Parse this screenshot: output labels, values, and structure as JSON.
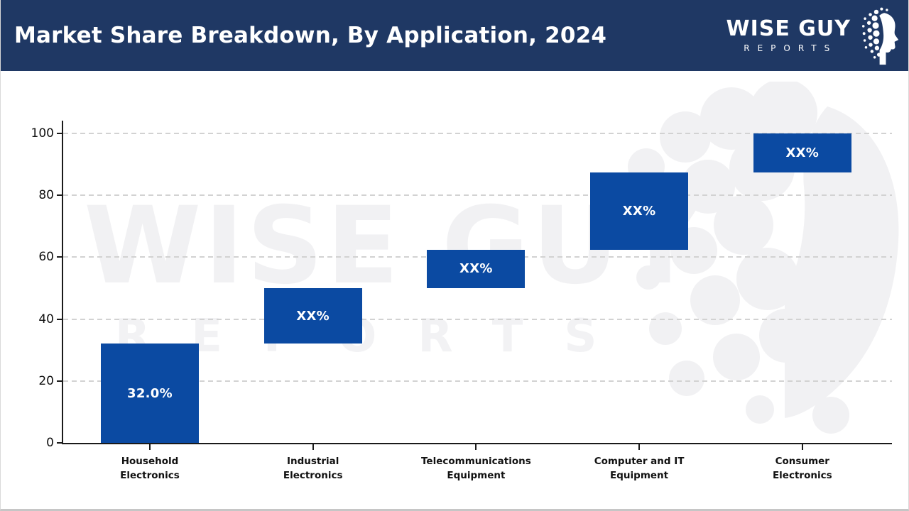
{
  "header": {
    "title": "Market Share Breakdown, By Application, 2024",
    "logo": {
      "name": "WISE GUY",
      "tagline": "REPORTS"
    }
  },
  "watermark": {
    "text_main": "WISE GUY",
    "text_sub": "REPORTS"
  },
  "colors": {
    "header_bg": "#1f3864",
    "bar_fill": "#0b4aa2",
    "bar_label_text": "#ffffff",
    "gridline": "#d2d2d2",
    "axis": "#1a1a1a",
    "tick_text": "#111111",
    "title_text": "#ffffff",
    "watermark": "#f1f1f3"
  },
  "chart_data": {
    "type": "bar",
    "variant": "waterfall",
    "title": "Market Share Breakdown, By Application, 2024",
    "unit": "%",
    "categories": [
      "Household Electronics",
      "Industrial Electronics",
      "Telecommunications Equipment",
      "Computer and IT Equipment",
      "Consumer Electronics"
    ],
    "category_label_lines": [
      [
        "Household",
        "Electronics"
      ],
      [
        "Industrial",
        "Electronics"
      ],
      [
        "Telecommunications",
        "Equipment"
      ],
      [
        "Computer and IT",
        "Equipment"
      ],
      [
        "Consumer",
        "Electronics"
      ]
    ],
    "segments": [
      {
        "category": "Household Electronics",
        "start": 0,
        "end": 32,
        "value": 32,
        "label": "32.0%"
      },
      {
        "category": "Industrial Electronics",
        "start": 32,
        "end": 50,
        "value": 18,
        "label": "XX%"
      },
      {
        "category": "Telecommunications Equipment",
        "start": 50,
        "end": 62.5,
        "value": 12.5,
        "label": "XX%"
      },
      {
        "category": "Computer and IT Equipment",
        "start": 62.5,
        "end": 87.5,
        "value": 25,
        "label": "XX%"
      },
      {
        "category": "Consumer Electronics",
        "start": 87.5,
        "end": 100,
        "value": 12.5,
        "label": "XX%"
      }
    ],
    "y_ticks": [
      0,
      20,
      40,
      60,
      80,
      100
    ],
    "ylim": [
      0,
      104
    ],
    "xlabel": "",
    "ylabel": "",
    "grid": "horizontal-dashed",
    "legend": "none"
  }
}
